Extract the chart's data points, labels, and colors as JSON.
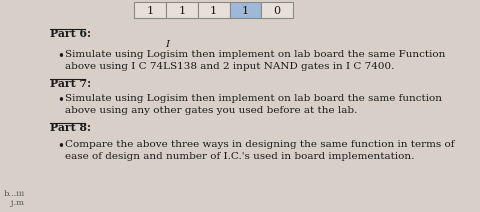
{
  "bg_color": "#d8d0c8",
  "table_cells": [
    "1",
    "1",
    "1",
    "1",
    "0"
  ],
  "table_highlight_index": 3,
  "table_highlight_color": "#a0b8d8",
  "table_normal_color": "#e8e0d8",
  "part6_label": "Part 6:",
  "part6_indent_marker": "I",
  "part6_bullet": "Simulate using Logisim then implement on lab board the same Function\nabove using I C 74LS138 and 2 input NAND gates in I C 7400.",
  "part7_label": "Part 7:",
  "part7_bullet": "Simulate using Logisim then implement on lab board the same function\nabove using any other gates you used before at the lab.",
  "part8_label": "Part 8:",
  "part8_bullet": "Compare the above three ways in designing the same function in terms of\nease of design and number of I.C.'s used in board implementation.",
  "text_color": "#1a1a1a",
  "font_size": 7.5,
  "label_font_size": 7.8,
  "bottom_left_text": "b...iii\n   j.m"
}
